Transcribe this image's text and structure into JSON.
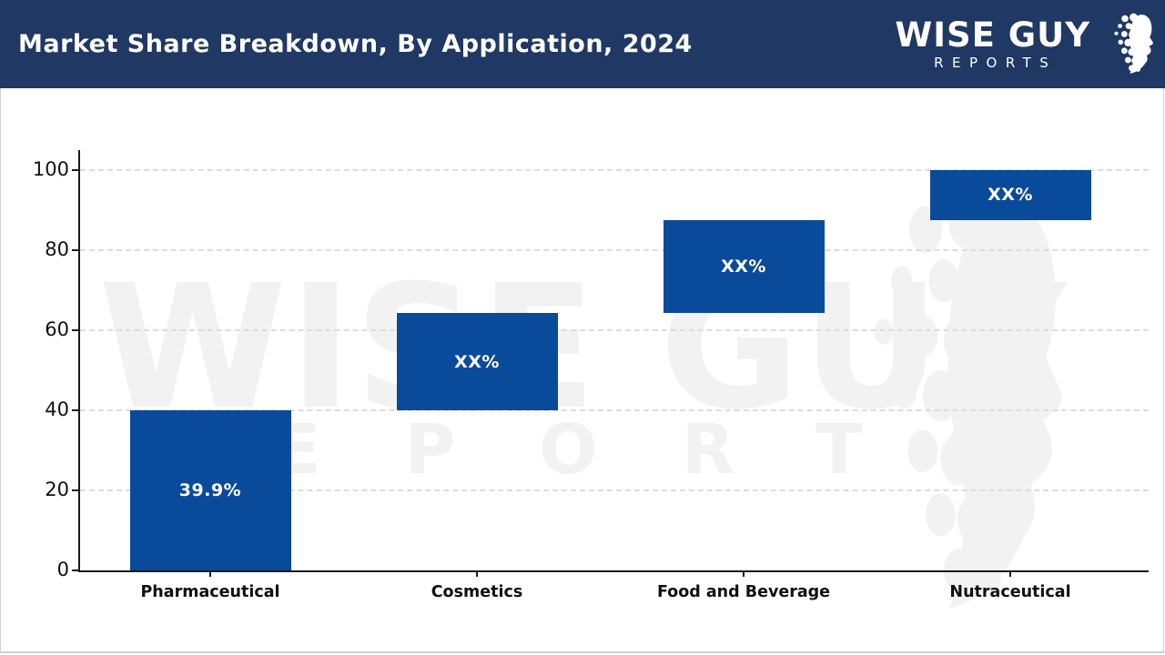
{
  "header": {
    "title": "Market Share Breakdown, By Application, 2024",
    "bg_color": "#1f3864",
    "text_color": "#ffffff",
    "logo": {
      "line1": "WISE GUY",
      "line2": "REPORTS"
    }
  },
  "watermark": {
    "line1": "WISE GUY",
    "line2": "REPORTS"
  },
  "chart_data": {
    "type": "bar",
    "subtype": "waterfall",
    "title": "Market Share Breakdown, By Application, 2024",
    "categories": [
      "Pharmaceutical",
      "Cosmetics",
      "Food and Beverage",
      "Nutraceutical"
    ],
    "segments": [
      {
        "category": "Pharmaceutical",
        "start": 0,
        "end": 39.9,
        "label": "39.9%"
      },
      {
        "category": "Cosmetics",
        "start": 39.9,
        "end": 64.4,
        "label": "XX%"
      },
      {
        "category": "Food and Beverage",
        "start": 64.4,
        "end": 87.6,
        "label": "XX%"
      },
      {
        "category": "Nutraceutical",
        "start": 87.6,
        "end": 100,
        "label": "XX%"
      }
    ],
    "bar_color": "#0a4a9b",
    "ylim": [
      0,
      100
    ],
    "y_ticks": [
      0,
      20,
      40,
      60,
      80,
      100
    ],
    "y_tick_labels": [
      "0",
      "20",
      "40",
      "60",
      "80",
      "100"
    ],
    "grid": "horizontal-dashed",
    "legend": "none",
    "axis_color": "#1a1a1a",
    "grid_color": "#dcdcdc"
  }
}
